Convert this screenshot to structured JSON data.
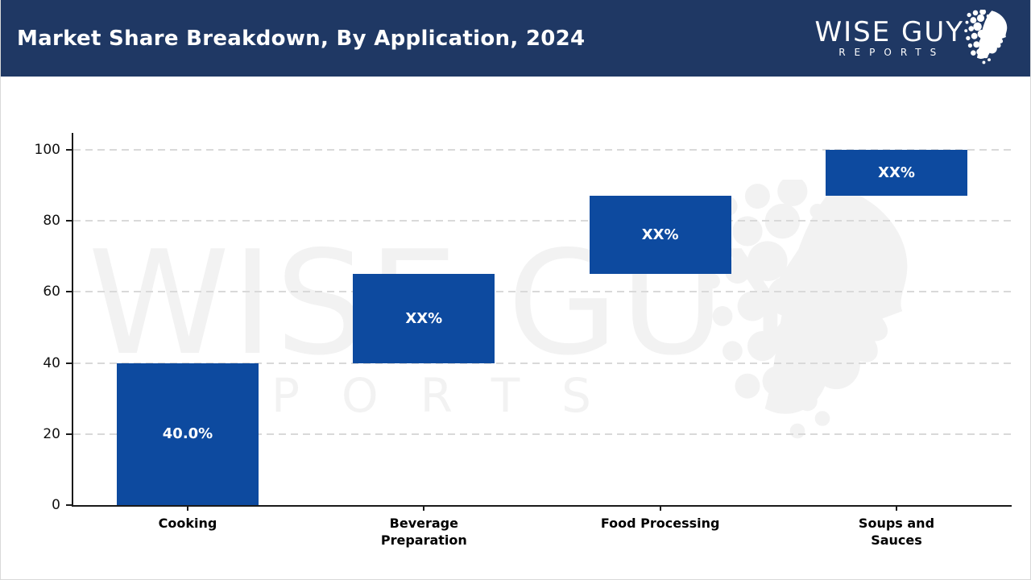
{
  "header": {
    "title": "Market Share Breakdown, By Application, 2024",
    "bg_color": "#1f3864",
    "logo": {
      "line1": "WISE GUY",
      "line2": "REPORTS"
    }
  },
  "watermark": {
    "line1": "WISE GUY",
    "line2": "REPORTS"
  },
  "chart_data": {
    "type": "bar",
    "subtype": "waterfall",
    "title": "Market Share Breakdown, By Application, 2024",
    "categories": [
      "Cooking",
      "Beverage\nPreparation",
      "Food Processing",
      "Soups and Sauces"
    ],
    "segments": [
      {
        "category": "Cooking",
        "start": 0,
        "end": 40,
        "label": "40.0%"
      },
      {
        "category": "Beverage Preparation",
        "start": 40,
        "end": 65,
        "label": "XX%"
      },
      {
        "category": "Food Processing",
        "start": 65,
        "end": 87,
        "label": "XX%"
      },
      {
        "category": "Soups and Sauces",
        "start": 87,
        "end": 100,
        "label": "XX%"
      }
    ],
    "ylim": [
      0,
      100
    ],
    "yticks": [
      0,
      20,
      40,
      60,
      80,
      100
    ],
    "grid": "horizontal-dashed",
    "legend": "none",
    "bar_color": "#0d4a9f",
    "bar_label_color": "#ffffff",
    "axis_color": "#1a1a1a",
    "gridline_color": "#d9d9d9",
    "tick_label_color": "#111111"
  }
}
